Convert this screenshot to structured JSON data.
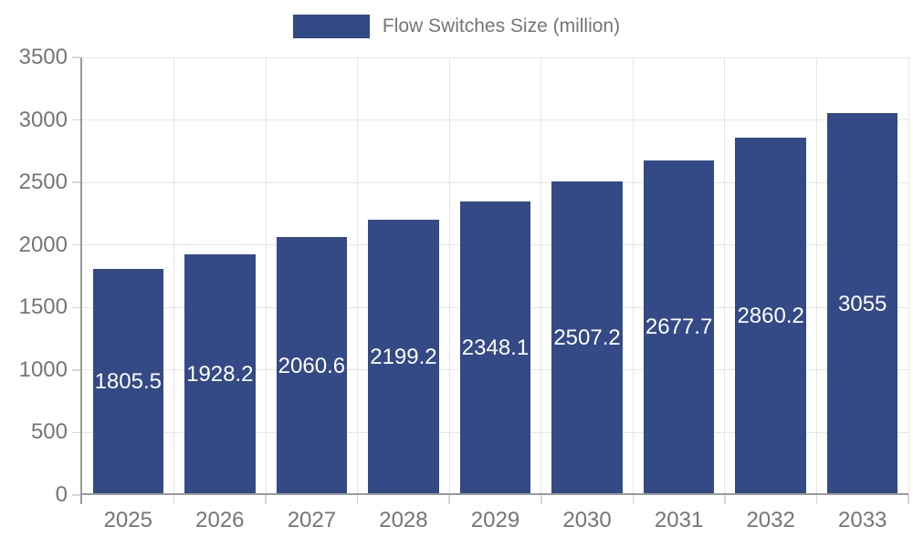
{
  "legend": {
    "label": "Flow Switches Size (million)",
    "swatch_color": "#344a86"
  },
  "chart_data": {
    "type": "bar",
    "title": "Flow Switches Size (million)",
    "categories": [
      "2025",
      "2026",
      "2027",
      "2028",
      "2029",
      "2030",
      "2031",
      "2032",
      "2033"
    ],
    "values": [
      1805.5,
      1928.2,
      2060.6,
      2199.2,
      2348.1,
      2507.2,
      2677.7,
      2860.2,
      3055
    ],
    "value_labels": [
      "1805.5",
      "1928.2",
      "2060.6",
      "2199.2",
      "2348.1",
      "2507.2",
      "2677.7",
      "2860.2",
      "3055"
    ],
    "xlabel": "",
    "ylabel": "",
    "ylim": [
      0,
      3500
    ],
    "yticks": [
      "0",
      "500",
      "1000",
      "1500",
      "2000",
      "2500",
      "3000",
      "3500"
    ],
    "grid": true,
    "legend_position": "top-center",
    "bar_width_ratio": 0.77,
    "colors": {
      "bar": "#344a86",
      "bar_label": "#ffffff",
      "axis_line": "#9a9a9a",
      "grid_line": "#e6e6e6",
      "tick_mark": "#d6d6d6",
      "tick_label": "#757575",
      "legend_text": "#757575",
      "background": "#ffffff"
    }
  }
}
